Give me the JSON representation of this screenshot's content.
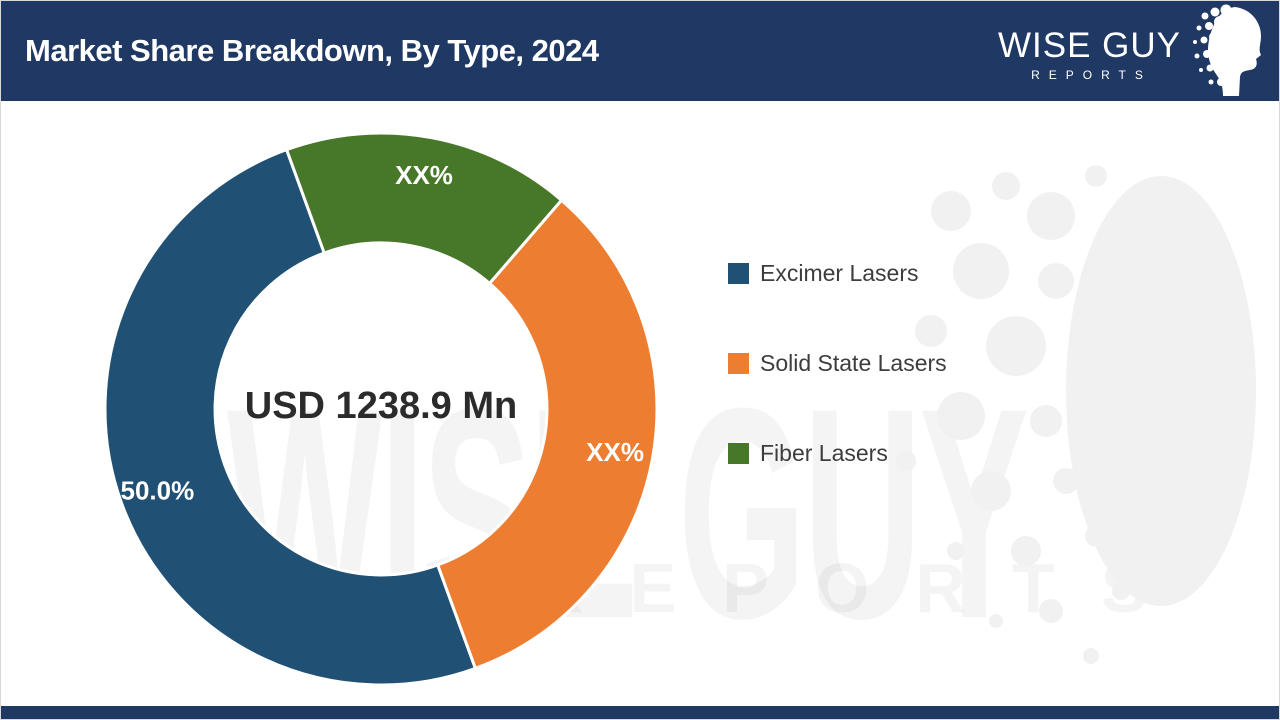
{
  "header": {
    "title": "Market Share Breakdown, By Type, 2024",
    "logo": {
      "name": "WISE GUY",
      "subtitle": "REPORTS"
    }
  },
  "watermark": {
    "line1": "WISE GUY",
    "line2": "REPORTS"
  },
  "chart_data": {
    "type": "donut",
    "title": "Market Share Breakdown, By Type, 2024",
    "center_label": "USD 1238.9 Mn",
    "slices": [
      {
        "label": "Excimer Lasers",
        "value": 50.0,
        "display": "50.0%",
        "color": "#205073"
      },
      {
        "label": "Solid State Lasers",
        "value": 33.1,
        "display": "XX%",
        "color": "#ED7D31"
      },
      {
        "label": "Fiber Lasers",
        "value": 16.9,
        "display": "XX%",
        "color": "#477728"
      }
    ],
    "start_angle_deg": -20,
    "direction": "ccw",
    "donut_hole_ratio": 0.6,
    "legend_position": "right",
    "units": "percent"
  },
  "colors": {
    "header_navy": "#203864",
    "footer_navy": "#203864",
    "slice_label_text": "#ffffff",
    "center_text": "#2b2b2b",
    "legend_text": "#3d3d3d",
    "watermark": "#f1f1f1"
  }
}
